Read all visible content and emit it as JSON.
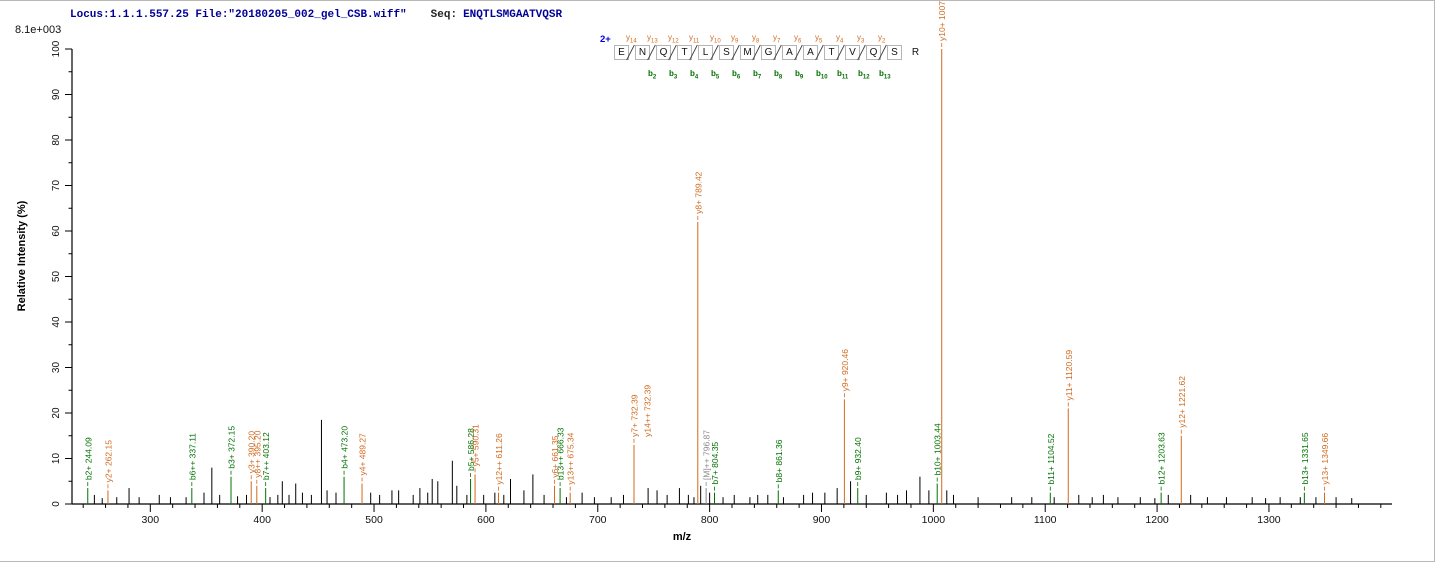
{
  "header": {
    "locus_file": "Locus:1.1.1.557.25 File:\"20180205_002_gel_CSB.wiff\"",
    "seq_label": "Seq:",
    "seq_value": "ENQTLSMGAATVQSR",
    "scale_label": "8.1e+003"
  },
  "peptide_ladder": {
    "charge_label": "2+",
    "residues": [
      "E",
      "N",
      "Q",
      "T",
      "L",
      "S",
      "M",
      "G",
      "A",
      "A",
      "T",
      "V",
      "Q",
      "S",
      "R"
    ],
    "y_ion_labels": [
      "y14",
      "y13",
      "y12",
      "y11",
      "y10",
      "y9",
      "y8",
      "y7",
      "y6",
      "y5",
      "y4",
      "y3",
      "y2"
    ],
    "b_ion_labels": [
      "b2",
      "b3",
      "b4",
      "b5",
      "b6",
      "b7",
      "b8",
      "b9",
      "b10",
      "b11",
      "b12",
      "b13"
    ]
  },
  "chart_data": {
    "type": "bar",
    "subtype": "ms2-stick-spectrum",
    "title": "",
    "xlabel": "m/z",
    "ylabel": "Relative  Intensity (%)",
    "xlim": [
      230,
      1410
    ],
    "ylim": [
      0,
      100
    ],
    "x_major_ticks": [
      300,
      400,
      500,
      600,
      700,
      800,
      900,
      1000,
      1100,
      1200,
      1300
    ],
    "x_minor_step": 20,
    "y_major_step": 10,
    "y_minor_step": 5,
    "grid": false,
    "legend": "none",
    "colors": {
      "b_ion": "#007000",
      "y_ion": "#D2691E",
      "noise": "#000000",
      "precursor": "#8a8a8a",
      "header_blue": "#000099",
      "charge_blue": "#0000E0",
      "axis": "#000000"
    },
    "labeled_peaks": [
      {
        "label": "b2+ 244.09",
        "series": "b",
        "mz": 244.09,
        "intensity": 3.5
      },
      {
        "label": "y2+ 262.15",
        "series": "y",
        "mz": 262.15,
        "intensity": 3
      },
      {
        "label": "b6++ 337.11",
        "series": "b",
        "mz": 337.11,
        "intensity": 3.5
      },
      {
        "label": "b3+ 372.15",
        "series": "b",
        "mz": 372.15,
        "intensity": 6
      },
      {
        "label": "y3+ 390.20",
        "series": "y",
        "mz": 390.2,
        "intensity": 5
      },
      {
        "label": "y8++ 395.20",
        "series": "y",
        "mz": 395.2,
        "intensity": 4
      },
      {
        "label": "b7++ 403.12",
        "series": "b",
        "mz": 403.12,
        "intensity": 3.5
      },
      {
        "label": "b4+ 473.20",
        "series": "b",
        "mz": 473.2,
        "intensity": 6
      },
      {
        "label": "y4+ 489.27",
        "series": "y",
        "mz": 489.27,
        "intensity": 4.5
      },
      {
        "label": "b5+ 586.28",
        "series": "b",
        "mz": 586.28,
        "intensity": 5.5
      },
      {
        "label": "y5+ 590.31",
        "series": "y",
        "mz": 590.31,
        "intensity": 6.5
      },
      {
        "label": "y12++ 611.26",
        "series": "y",
        "mz": 611.26,
        "intensity": 2.5
      },
      {
        "label": "y6+ 661.35",
        "series": "y",
        "mz": 661.35,
        "intensity": 4
      },
      {
        "label": "b13++ 666.33",
        "series": "b",
        "mz": 666.33,
        "intensity": 3.5
      },
      {
        "label": "y13++ 675.34",
        "series": "y",
        "mz": 675.34,
        "intensity": 2.5
      },
      {
        "label": "y7+ 732.39",
        "series": "y",
        "mz": 732.39,
        "intensity": 13
      },
      {
        "label": "y14++ 732.39",
        "series": "y",
        "mz": 732.39,
        "intensity": 13,
        "dx": 13,
        "label_only": true
      },
      {
        "label": "y8+ 789.42",
        "series": "y",
        "mz": 789.42,
        "intensity": 62
      },
      {
        "label": "[M]++ 796.87",
        "series": "precursor",
        "mz": 796.87,
        "intensity": 3.5
      },
      {
        "label": "b7+ 804.35",
        "series": "b",
        "mz": 804.35,
        "intensity": 2.5
      },
      {
        "label": "b8+ 861.36",
        "series": "b",
        "mz": 861.36,
        "intensity": 3
      },
      {
        "label": "y9+ 920.46",
        "series": "y",
        "mz": 920.46,
        "intensity": 23
      },
      {
        "label": "b9+ 932.40",
        "series": "b",
        "mz": 932.4,
        "intensity": 3.5
      },
      {
        "label": "b10+ 1003.44",
        "series": "b",
        "mz": 1003.44,
        "intensity": 4.5
      },
      {
        "label": "y10+ 1007.49",
        "series": "y",
        "mz": 1007.49,
        "intensity": 100
      },
      {
        "label": "b11+ 1104.52",
        "series": "b",
        "mz": 1104.52,
        "intensity": 2.5
      },
      {
        "label": "y11+ 1120.59",
        "series": "y",
        "mz": 1120.59,
        "intensity": 21
      },
      {
        "label": "b12+ 1203.63",
        "series": "b",
        "mz": 1203.63,
        "intensity": 2.5
      },
      {
        "label": "y12+ 1221.62",
        "series": "y",
        "mz": 1221.62,
        "intensity": 15
      },
      {
        "label": "b13+ 1331.65",
        "series": "b",
        "mz": 1331.65,
        "intensity": 2.5
      },
      {
        "label": "y13+ 1349.66",
        "series": "y",
        "mz": 1349.66,
        "intensity": 2.5
      }
    ],
    "noise_peaks": [
      [
        250,
        2
      ],
      [
        257,
        1.3
      ],
      [
        270,
        1.5
      ],
      [
        281,
        3.5
      ],
      [
        290,
        1.5
      ],
      [
        308,
        2
      ],
      [
        318,
        1.5
      ],
      [
        332,
        1.5
      ],
      [
        348,
        2.5
      ],
      [
        355,
        8
      ],
      [
        362,
        2
      ],
      [
        378,
        1.7
      ],
      [
        386,
        2
      ],
      [
        407,
        1.5
      ],
      [
        414,
        2
      ],
      [
        418,
        5
      ],
      [
        424,
        2
      ],
      [
        430,
        4.5
      ],
      [
        436,
        2.5
      ],
      [
        444,
        2
      ],
      [
        453,
        18.5
      ],
      [
        458,
        3
      ],
      [
        466,
        2.5
      ],
      [
        497,
        2.5
      ],
      [
        505,
        2
      ],
      [
        516,
        3
      ],
      [
        522,
        3
      ],
      [
        535,
        2
      ],
      [
        541,
        3.5
      ],
      [
        548,
        2.5
      ],
      [
        552,
        5.5
      ],
      [
        557,
        5
      ],
      [
        570,
        9.5
      ],
      [
        574,
        4
      ],
      [
        583,
        2
      ],
      [
        598,
        2
      ],
      [
        608,
        2.5
      ],
      [
        616,
        2
      ],
      [
        622,
        5.5
      ],
      [
        634,
        3
      ],
      [
        642,
        6.5
      ],
      [
        652,
        2
      ],
      [
        672,
        1.5
      ],
      [
        686,
        2.5
      ],
      [
        697,
        1.5
      ],
      [
        712,
        1.5
      ],
      [
        723,
        2
      ],
      [
        745,
        3.5
      ],
      [
        753,
        3
      ],
      [
        762,
        2
      ],
      [
        773,
        3.5
      ],
      [
        781,
        2
      ],
      [
        786,
        1.5
      ],
      [
        792,
        4
      ],
      [
        800,
        2.5
      ],
      [
        812,
        1.5
      ],
      [
        822,
        2
      ],
      [
        836,
        1.5
      ],
      [
        843,
        2
      ],
      [
        852,
        2
      ],
      [
        866,
        1.5
      ],
      [
        884,
        2
      ],
      [
        892,
        2.5
      ],
      [
        903,
        2.5
      ],
      [
        914,
        3.5
      ],
      [
        926,
        5
      ],
      [
        940,
        2
      ],
      [
        958,
        2.5
      ],
      [
        968,
        2
      ],
      [
        976,
        3
      ],
      [
        988,
        6
      ],
      [
        996,
        3
      ],
      [
        1012,
        3
      ],
      [
        1018,
        2
      ],
      [
        1040,
        1.5
      ],
      [
        1070,
        1.5
      ],
      [
        1088,
        1.5
      ],
      [
        1108,
        1.5
      ],
      [
        1130,
        2
      ],
      [
        1142,
        1.5
      ],
      [
        1152,
        2
      ],
      [
        1165,
        1.5
      ],
      [
        1185,
        1.5
      ],
      [
        1198,
        1.3
      ],
      [
        1210,
        2
      ],
      [
        1230,
        2
      ],
      [
        1245,
        1.5
      ],
      [
        1262,
        1.5
      ],
      [
        1285,
        1.5
      ],
      [
        1297,
        1.3
      ],
      [
        1310,
        1.5
      ],
      [
        1328,
        1.5
      ],
      [
        1342,
        1.5
      ],
      [
        1360,
        1.5
      ],
      [
        1374,
        1.3
      ]
    ]
  }
}
